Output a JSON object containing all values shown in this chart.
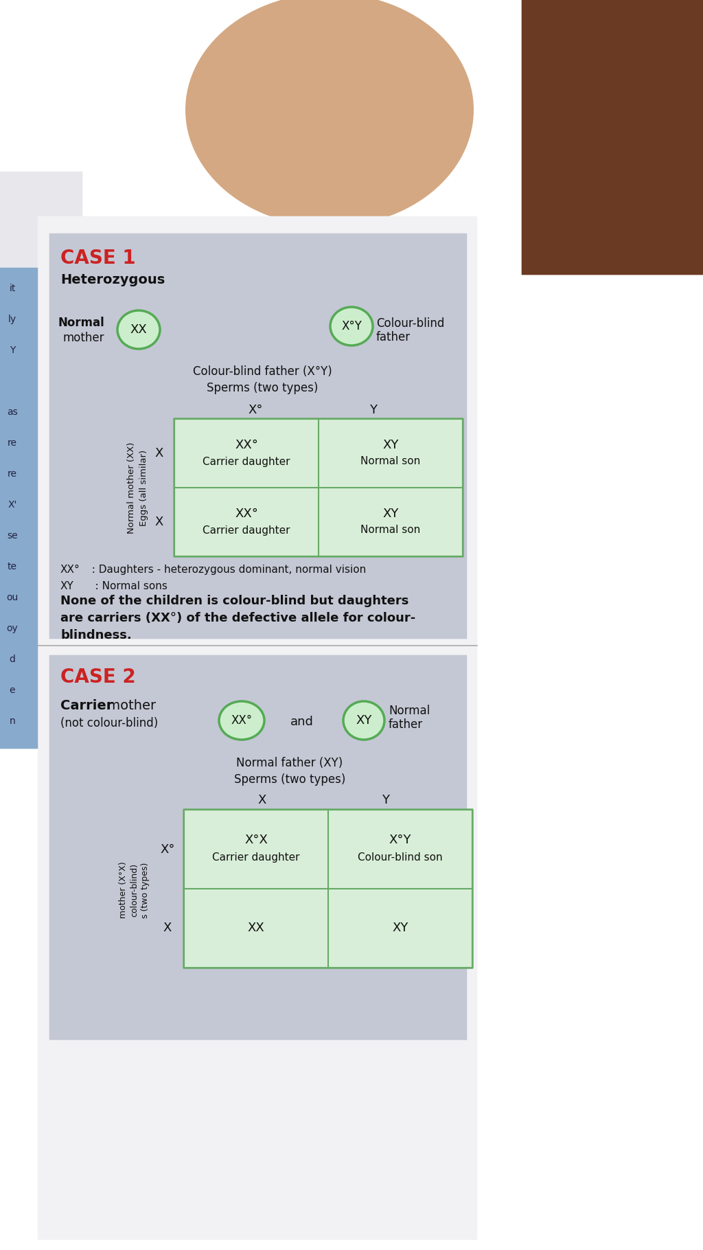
{
  "skin_color": "#d4a882",
  "skin_right": "#5a3020",
  "page_white": "#f0f0f2",
  "sidebar_blue": "#7799cc",
  "case_bg": "#c8cad8",
  "table_bg": "#d8eed8",
  "table_border": "#66aa66",
  "circle_edge": "#55aa55",
  "circle_fill": "#cceecc",
  "red_text": "#cc2222",
  "dark_text": "#111111",
  "case1_title": "CASE 1",
  "case1_subtitle": "Heterozygous",
  "case1_mother_text": "Normal\nmother",
  "case1_mother_sym": "XX",
  "case1_father_sym": "X°Y",
  "case1_father_text": "Colour-blind\nfather",
  "case1_info1": "Colour-blind father (X°Y)",
  "case1_info2": "Sperms (two types)",
  "case1_col1": "X°",
  "case1_col2": "Y",
  "case1_row1": "X",
  "case1_row2": "X",
  "case1_ax_label1": "Normal mother (XX)",
  "case1_ax_label2": "Eggs (all similar)",
  "case1_c11a": "XX°",
  "case1_c11b": "Carrier daughter",
  "case1_c12a": "XY",
  "case1_c12b": "Normal son",
  "case1_c21a": "XX°",
  "case1_c21b": "Carrier daughter",
  "case1_c22a": "XY",
  "case1_c22b": "Normal son",
  "case1_leg1a": "XX°",
  "case1_leg1b": "  : Daughters - heterozygous dominant, normal vision",
  "case1_leg2a": "XY",
  "case1_leg2b": "   : Normal sons",
  "case1_conc": "None of the children is colour-blind but daughters\nare carriers (XX°) of the defective allele for colour-\nblindness.",
  "case2_title": "CASE 2",
  "case2_mother_bold": "Carrier",
  "case2_mother_rest": " mother",
  "case2_mother_sub": "(not colour-blind)",
  "case2_mother_sym": "XX°",
  "case2_and": "and",
  "case2_father_sym": "XY",
  "case2_father_text": "Normal\nfather",
  "case2_info1": "Normal father (XY)",
  "case2_info2": "Sperms (two types)",
  "case2_col1": "X",
  "case2_col2": "Y",
  "case2_row1": "X°",
  "case2_row2": "X",
  "case2_ax_label1": "mother (X°X)",
  "case2_ax_label2": "colour-blind)",
  "case2_ax_label3": "s (two types)",
  "case2_c11a": "X°X",
  "case2_c11b": "Carrier daughter",
  "case2_c12a": "X°Y",
  "case2_c12b": "Colour-blind son",
  "case2_c21a": "XX",
  "case2_c21b": "",
  "case2_c22a": "XY",
  "case2_c22b": ""
}
